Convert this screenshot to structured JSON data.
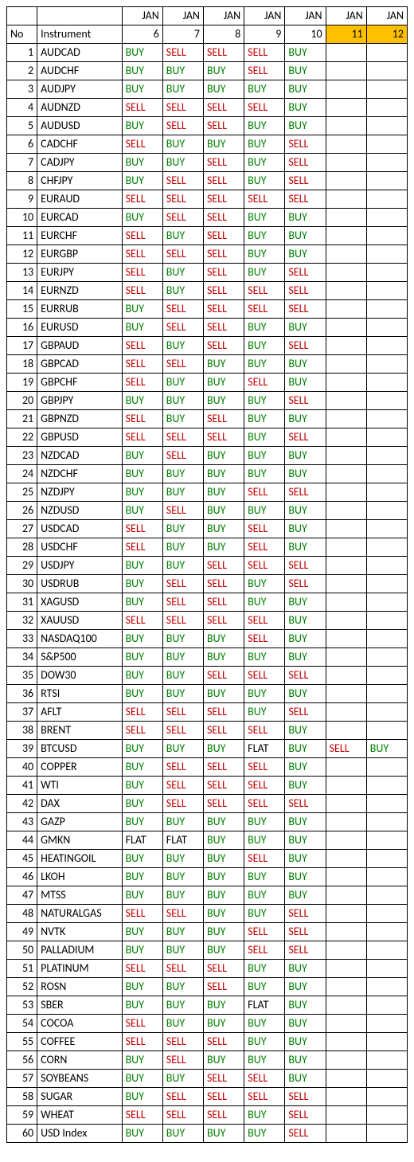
{
  "table": {
    "headers": {
      "no_label": "No",
      "instrument_label": "Instrument",
      "month_label": "JAN",
      "days": [
        6,
        7,
        8,
        9,
        10,
        11,
        12
      ],
      "highlight_days": [
        11,
        12
      ]
    },
    "colors": {
      "buy": "#008000",
      "sell": "#c00000",
      "flat": "#000000",
      "highlight_bg": "#ffc000",
      "border": "#000000",
      "background": "#ffffff"
    },
    "rows": [
      {
        "no": 1,
        "instrument": "AUDCAD",
        "signals": [
          "BUY",
          "SELL",
          "SELL",
          "SELL",
          "BUY",
          "",
          ""
        ]
      },
      {
        "no": 2,
        "instrument": "AUDCHF",
        "signals": [
          "BUY",
          "BUY",
          "BUY",
          "SELL",
          "BUY",
          "",
          ""
        ]
      },
      {
        "no": 3,
        "instrument": "AUDJPY",
        "signals": [
          "BUY",
          "BUY",
          "BUY",
          "BUY",
          "BUY",
          "",
          ""
        ]
      },
      {
        "no": 4,
        "instrument": "AUDNZD",
        "signals": [
          "SELL",
          "SELL",
          "SELL",
          "SELL",
          "BUY",
          "",
          ""
        ]
      },
      {
        "no": 5,
        "instrument": "AUDUSD",
        "signals": [
          "BUY",
          "SELL",
          "SELL",
          "BUY",
          "BUY",
          "",
          ""
        ]
      },
      {
        "no": 6,
        "instrument": "CADCHF",
        "signals": [
          "SELL",
          "BUY",
          "BUY",
          "BUY",
          "SELL",
          "",
          ""
        ]
      },
      {
        "no": 7,
        "instrument": "CADJPY",
        "signals": [
          "BUY",
          "BUY",
          "SELL",
          "BUY",
          "SELL",
          "",
          ""
        ]
      },
      {
        "no": 8,
        "instrument": "CHFJPY",
        "signals": [
          "BUY",
          "SELL",
          "SELL",
          "BUY",
          "SELL",
          "",
          ""
        ]
      },
      {
        "no": 9,
        "instrument": "EURAUD",
        "signals": [
          "SELL",
          "SELL",
          "SELL",
          "SELL",
          "SELL",
          "",
          ""
        ]
      },
      {
        "no": 10,
        "instrument": "EURCAD",
        "signals": [
          "BUY",
          "SELL",
          "SELL",
          "BUY",
          "BUY",
          "",
          ""
        ]
      },
      {
        "no": 11,
        "instrument": "EURCHF",
        "signals": [
          "SELL",
          "BUY",
          "SELL",
          "BUY",
          "BUY",
          "",
          ""
        ]
      },
      {
        "no": 12,
        "instrument": "EURGBP",
        "signals": [
          "SELL",
          "SELL",
          "SELL",
          "BUY",
          "BUY",
          "",
          ""
        ]
      },
      {
        "no": 13,
        "instrument": "EURJPY",
        "signals": [
          "SELL",
          "BUY",
          "SELL",
          "BUY",
          "SELL",
          "",
          ""
        ]
      },
      {
        "no": 14,
        "instrument": "EURNZD",
        "signals": [
          "SELL",
          "BUY",
          "SELL",
          "SELL",
          "SELL",
          "",
          ""
        ]
      },
      {
        "no": 15,
        "instrument": "EURRUB",
        "signals": [
          "BUY",
          "SELL",
          "SELL",
          "SELL",
          "SELL",
          "",
          ""
        ]
      },
      {
        "no": 16,
        "instrument": "EURUSD",
        "signals": [
          "BUY",
          "SELL",
          "SELL",
          "BUY",
          "BUY",
          "",
          ""
        ]
      },
      {
        "no": 17,
        "instrument": "GBPAUD",
        "signals": [
          "SELL",
          "BUY",
          "SELL",
          "BUY",
          "SELL",
          "",
          ""
        ]
      },
      {
        "no": 18,
        "instrument": "GBPCAD",
        "signals": [
          "SELL",
          "SELL",
          "BUY",
          "BUY",
          "BUY",
          "",
          ""
        ]
      },
      {
        "no": 19,
        "instrument": "GBPCHF",
        "signals": [
          "SELL",
          "BUY",
          "BUY",
          "SELL",
          "BUY",
          "",
          ""
        ]
      },
      {
        "no": 20,
        "instrument": "GBPJPY",
        "signals": [
          "BUY",
          "BUY",
          "BUY",
          "BUY",
          "SELL",
          "",
          ""
        ]
      },
      {
        "no": 21,
        "instrument": "GBPNZD",
        "signals": [
          "SELL",
          "BUY",
          "SELL",
          "BUY",
          "BUY",
          "",
          ""
        ]
      },
      {
        "no": 22,
        "instrument": "GBPUSD",
        "signals": [
          "SELL",
          "SELL",
          "SELL",
          "BUY",
          "SELL",
          "",
          ""
        ]
      },
      {
        "no": 23,
        "instrument": "NZDCAD",
        "signals": [
          "BUY",
          "SELL",
          "BUY",
          "BUY",
          "BUY",
          "",
          ""
        ]
      },
      {
        "no": 24,
        "instrument": "NZDCHF",
        "signals": [
          "BUY",
          "BUY",
          "BUY",
          "BUY",
          "BUY",
          "",
          ""
        ]
      },
      {
        "no": 25,
        "instrument": "NZDJPY",
        "signals": [
          "BUY",
          "BUY",
          "BUY",
          "SELL",
          "SELL",
          "",
          ""
        ]
      },
      {
        "no": 26,
        "instrument": "NZDUSD",
        "signals": [
          "BUY",
          "SELL",
          "BUY",
          "BUY",
          "BUY",
          "",
          ""
        ]
      },
      {
        "no": 27,
        "instrument": "USDCAD",
        "signals": [
          "SELL",
          "BUY",
          "BUY",
          "SELL",
          "BUY",
          "",
          ""
        ]
      },
      {
        "no": 28,
        "instrument": "USDCHF",
        "signals": [
          "SELL",
          "BUY",
          "BUY",
          "SELL",
          "BUY",
          "",
          ""
        ]
      },
      {
        "no": 29,
        "instrument": "USDJPY",
        "signals": [
          "BUY",
          "BUY",
          "SELL",
          "SELL",
          "SELL",
          "",
          ""
        ]
      },
      {
        "no": 30,
        "instrument": "USDRUB",
        "signals": [
          "BUY",
          "SELL",
          "SELL",
          "BUY",
          "SELL",
          "",
          ""
        ]
      },
      {
        "no": 31,
        "instrument": "XAGUSD",
        "signals": [
          "BUY",
          "SELL",
          "SELL",
          "BUY",
          "BUY",
          "",
          ""
        ]
      },
      {
        "no": 32,
        "instrument": "XAUUSD",
        "signals": [
          "SELL",
          "SELL",
          "SELL",
          "SELL",
          "BUY",
          "",
          ""
        ]
      },
      {
        "no": 33,
        "instrument": "NASDAQ100",
        "signals": [
          "BUY",
          "BUY",
          "BUY",
          "SELL",
          "BUY",
          "",
          ""
        ]
      },
      {
        "no": 34,
        "instrument": "S&P500",
        "signals": [
          "BUY",
          "BUY",
          "BUY",
          "BUY",
          "BUY",
          "",
          ""
        ]
      },
      {
        "no": 35,
        "instrument": "DOW30",
        "signals": [
          "BUY",
          "BUY",
          "SELL",
          "SELL",
          "SELL",
          "",
          ""
        ]
      },
      {
        "no": 36,
        "instrument": "RTSI",
        "signals": [
          "BUY",
          "BUY",
          "BUY",
          "BUY",
          "BUY",
          "",
          ""
        ]
      },
      {
        "no": 37,
        "instrument": "AFLT",
        "signals": [
          "SELL",
          "SELL",
          "SELL",
          "BUY",
          "SELL",
          "",
          ""
        ]
      },
      {
        "no": 38,
        "instrument": "BRENT",
        "signals": [
          "SELL",
          "SELL",
          "SELL",
          "SELL",
          "BUY",
          "",
          ""
        ]
      },
      {
        "no": 39,
        "instrument": "BTCUSD",
        "signals": [
          "BUY",
          "BUY",
          "BUY",
          "FLAT",
          "BUY",
          "SELL",
          "BUY"
        ]
      },
      {
        "no": 40,
        "instrument": "COPPER",
        "signals": [
          "BUY",
          "SELL",
          "SELL",
          "SELL",
          "BUY",
          "",
          ""
        ]
      },
      {
        "no": 41,
        "instrument": "WTI",
        "signals": [
          "BUY",
          "SELL",
          "SELL",
          "SELL",
          "BUY",
          "",
          ""
        ]
      },
      {
        "no": 42,
        "instrument": "DAX",
        "signals": [
          "BUY",
          "SELL",
          "SELL",
          "SELL",
          "SELL",
          "",
          ""
        ]
      },
      {
        "no": 43,
        "instrument": "GAZP",
        "signals": [
          "BUY",
          "BUY",
          "BUY",
          "BUY",
          "BUY",
          "",
          ""
        ]
      },
      {
        "no": 44,
        "instrument": "GMKN",
        "signals": [
          "FLAT",
          "FLAT",
          "BUY",
          "BUY",
          "BUY",
          "",
          ""
        ]
      },
      {
        "no": 45,
        "instrument": "HEATINGOIL",
        "signals": [
          "BUY",
          "BUY",
          "BUY",
          "SELL",
          "BUY",
          "",
          ""
        ]
      },
      {
        "no": 46,
        "instrument": "LKOH",
        "signals": [
          "BUY",
          "BUY",
          "BUY",
          "BUY",
          "BUY",
          "",
          ""
        ]
      },
      {
        "no": 47,
        "instrument": "MTSS",
        "signals": [
          "BUY",
          "BUY",
          "BUY",
          "BUY",
          "BUY",
          "",
          ""
        ]
      },
      {
        "no": 48,
        "instrument": "NATURALGAS",
        "signals": [
          "SELL",
          "SELL",
          "BUY",
          "BUY",
          "SELL",
          "",
          ""
        ]
      },
      {
        "no": 49,
        "instrument": "NVTK",
        "signals": [
          "BUY",
          "BUY",
          "BUY",
          "SELL",
          "SELL",
          "",
          ""
        ]
      },
      {
        "no": 50,
        "instrument": "PALLADIUM",
        "signals": [
          "BUY",
          "BUY",
          "BUY",
          "SELL",
          "SELL",
          "",
          ""
        ]
      },
      {
        "no": 51,
        "instrument": "PLATINUM",
        "signals": [
          "SELL",
          "SELL",
          "SELL",
          "BUY",
          "BUY",
          "",
          ""
        ]
      },
      {
        "no": 52,
        "instrument": "ROSN",
        "signals": [
          "BUY",
          "BUY",
          "SELL",
          "BUY",
          "BUY",
          "",
          ""
        ]
      },
      {
        "no": 53,
        "instrument": "SBER",
        "signals": [
          "BUY",
          "BUY",
          "BUY",
          "FLAT",
          "BUY",
          "",
          ""
        ]
      },
      {
        "no": 54,
        "instrument": "COCOA",
        "signals": [
          "SELL",
          "BUY",
          "BUY",
          "BUY",
          "BUY",
          "",
          ""
        ]
      },
      {
        "no": 55,
        "instrument": "COFFEE",
        "signals": [
          "SELL",
          "SELL",
          "SELL",
          "BUY",
          "BUY",
          "",
          ""
        ]
      },
      {
        "no": 56,
        "instrument": "CORN",
        "signals": [
          "BUY",
          "SELL",
          "BUY",
          "BUY",
          "BUY",
          "",
          ""
        ]
      },
      {
        "no": 57,
        "instrument": "SOYBEANS",
        "signals": [
          "BUY",
          "BUY",
          "SELL",
          "SELL",
          "BUY",
          "",
          ""
        ]
      },
      {
        "no": 58,
        "instrument": "SUGAR",
        "signals": [
          "BUY",
          "SELL",
          "SELL",
          "SELL",
          "SELL",
          "",
          ""
        ]
      },
      {
        "no": 59,
        "instrument": "WHEAT",
        "signals": [
          "SELL",
          "SELL",
          "SELL",
          "BUY",
          "SELL",
          "",
          ""
        ]
      },
      {
        "no": 60,
        "instrument": "USD Index",
        "signals": [
          "BUY",
          "BUY",
          "BUY",
          "BUY",
          "SELL",
          "",
          ""
        ]
      }
    ]
  }
}
